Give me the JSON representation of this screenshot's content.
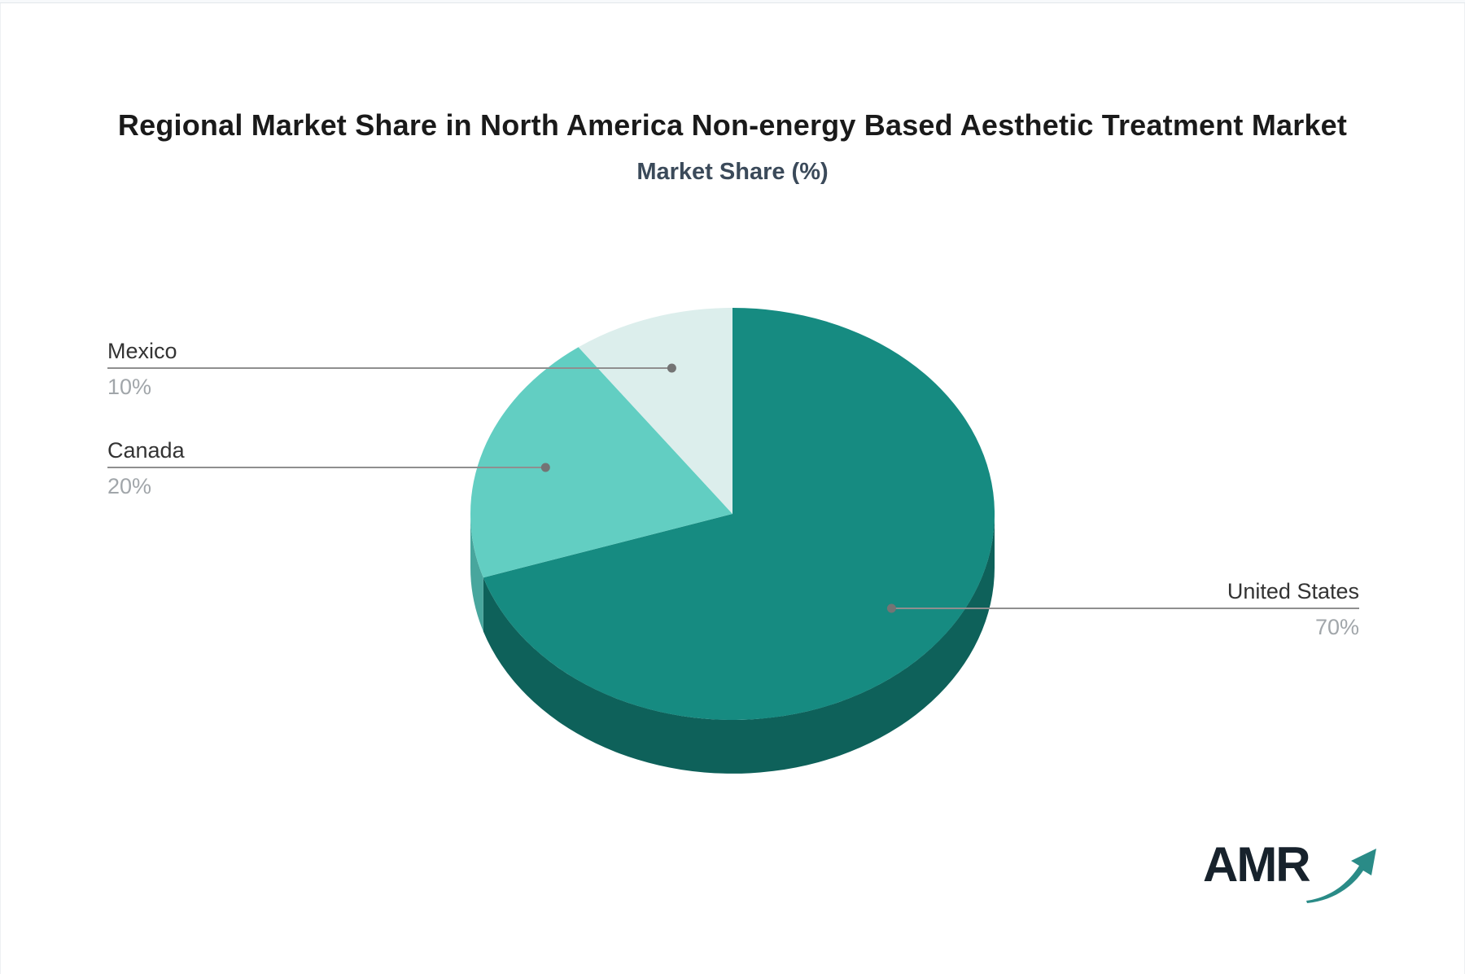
{
  "header": {
    "title": "Regional Market Share in North America Non-energy Based Aesthetic Treatment Market",
    "subtitle": "Market Share (%)"
  },
  "chart_data": {
    "type": "pie",
    "title": "Regional Market Share in North America Non-energy Based Aesthetic Treatment Market",
    "subtitle": "Market Share (%)",
    "unit": "%",
    "effect": "3d",
    "start_angle_deg": 0,
    "direction": "clockwise",
    "legend_position": "none",
    "connector_color": "#8f8f8f",
    "connector_dot_color": "#747474",
    "slices": [
      {
        "label": "United States",
        "value": 70,
        "display": "70%",
        "color": "#168b81",
        "side_color": "#0e615a"
      },
      {
        "label": "Canada",
        "value": 20,
        "display": "20%",
        "color": "#62cec2",
        "side_color": "#48a69d"
      },
      {
        "label": "Mexico",
        "value": 10,
        "display": "10%",
        "color": "#dceeec",
        "side_color": "#b9d9d6"
      }
    ]
  },
  "branding": {
    "logo_text": "AMR",
    "logo_arrow_color": "#2a8b87"
  }
}
